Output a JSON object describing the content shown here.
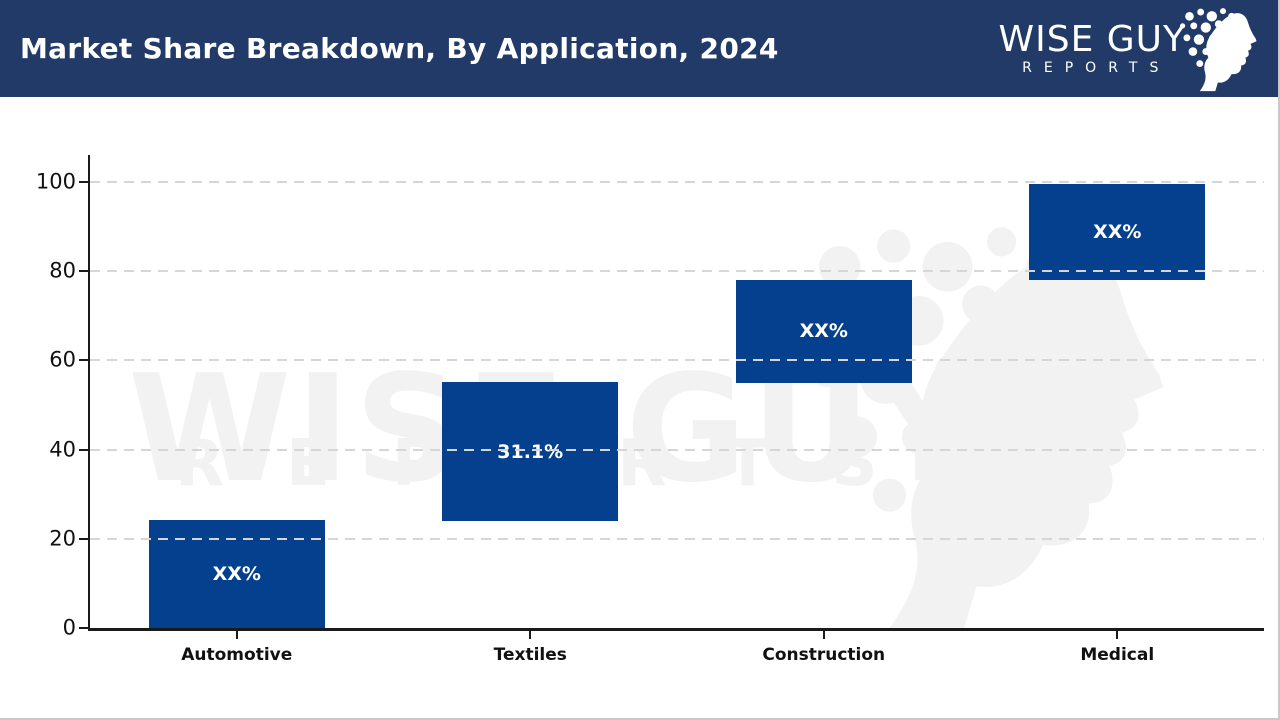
{
  "header": {
    "title": "Market Share Breakdown, By Application, 2024",
    "logo": {
      "brand_line1": "WISE GUY",
      "brand_line2": "REPORTS",
      "head_icon": "head-profile-dots-icon"
    }
  },
  "watermark": {
    "line1": "WISE GUY",
    "line2": "REPORTS"
  },
  "chart_data": {
    "type": "bar",
    "subtype": "floating-waterfall",
    "title": "Market Share Breakdown, By Application, 2024",
    "categories": [
      "Automotive",
      "Textiles",
      "Construction",
      "Medical"
    ],
    "series": [
      {
        "name": "Market Share",
        "segments": [
          {
            "category": "Automotive",
            "start": 0,
            "end": 24.2,
            "label": "XX%"
          },
          {
            "category": "Textiles",
            "start": 24.0,
            "end": 55.1,
            "label": "31.1%"
          },
          {
            "category": "Construction",
            "start": 55.0,
            "end": 78.0,
            "label": "XX%"
          },
          {
            "category": "Medical",
            "start": 78.0,
            "end": 99.6,
            "label": "XX%"
          }
        ]
      }
    ],
    "xlabel": "",
    "ylabel": "",
    "yticks": [
      0,
      20,
      40,
      60,
      80,
      100
    ],
    "ylim": [
      0,
      106
    ],
    "grid": true,
    "grid_style": "dashed",
    "legend": false,
    "bar_width_fraction": 0.6
  },
  "colors": {
    "header_bg": "#223a67",
    "bar": "#05408e",
    "bar_label": "#ffffff",
    "axis": "#1a1a1a",
    "gridline": "#d6d6d6",
    "watermark": "#f2f2f3",
    "bottom_rule": "#c9c9c9",
    "title_text": "#ffffff"
  }
}
